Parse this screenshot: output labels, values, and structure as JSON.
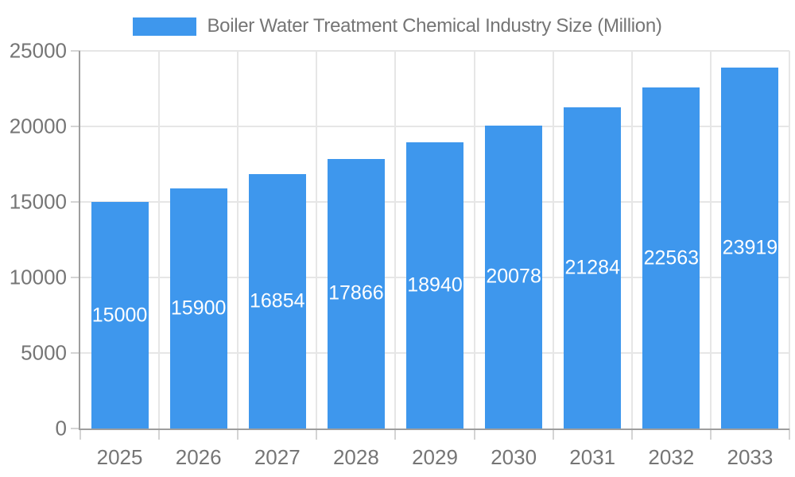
{
  "chart_data": {
    "type": "bar",
    "title": "Boiler Water Treatment Chemical Industry Size (Million)",
    "categories": [
      "2025",
      "2026",
      "2027",
      "2028",
      "2029",
      "2030",
      "2031",
      "2032",
      "2033"
    ],
    "values": [
      15000,
      15900,
      16854,
      17866,
      18940,
      20078,
      21284,
      22563,
      23919
    ],
    "xlabel": "",
    "ylabel": "",
    "ylim": [
      0,
      25000
    ],
    "yticks": [
      0,
      5000,
      10000,
      15000,
      20000,
      25000
    ],
    "grid": "horizontal-and-vertical",
    "legend_position": "top-center",
    "value_label_position": "inside-middle",
    "bar_color": "#3e97ed",
    "value_label_color": "#ffffff",
    "axis_text_color": "#757575",
    "gridline_color": "#e6e6e6",
    "axis_line_color": "#9e9e9e",
    "tick_color": "#d4d4d4",
    "background_color": "#ffffff"
  },
  "legend": {
    "label": "Boiler Water Treatment Chemical Industry Size (Million)"
  }
}
